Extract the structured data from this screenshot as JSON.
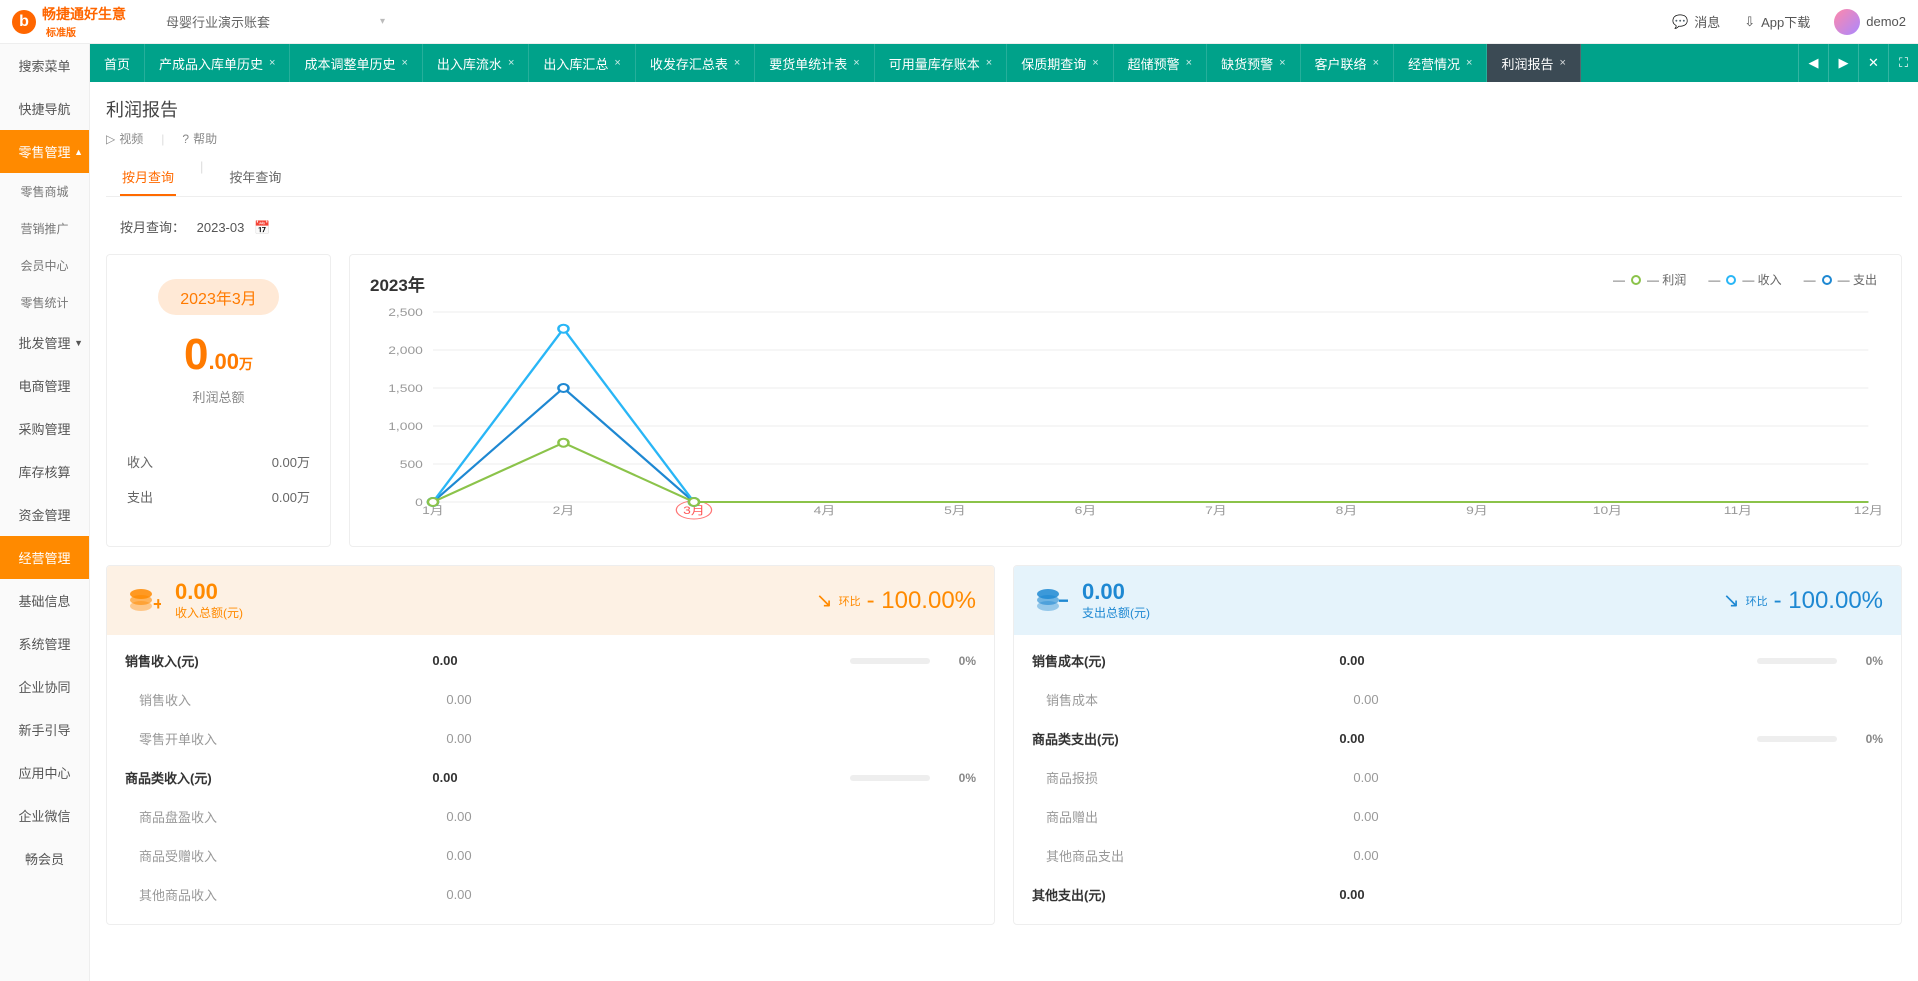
{
  "topbar": {
    "logo_text": "畅捷通好生意",
    "logo_sub": "标准版",
    "account_selector": "母婴行业演示账套",
    "msg": "消息",
    "app_dl": "App下载",
    "user": "demo2"
  },
  "sidebar": {
    "search": "搜索菜单",
    "quicknav": "快捷导航",
    "groups": [
      {
        "label": "零售管理",
        "active": true,
        "arrow": "▲",
        "subs": [
          "零售商城",
          "营销推广",
          "会员中心",
          "零售统计"
        ]
      },
      {
        "label": "批发管理",
        "arrow": "▼"
      },
      {
        "label": "电商管理"
      },
      {
        "label": "采购管理"
      },
      {
        "label": "库存核算"
      },
      {
        "label": "资金管理"
      },
      {
        "label": "经营管理",
        "highlight": true
      },
      {
        "label": "基础信息"
      },
      {
        "label": "系统管理"
      },
      {
        "label": "企业协同"
      },
      {
        "label": "新手引导"
      },
      {
        "label": "应用中心"
      },
      {
        "label": "企业微信"
      },
      {
        "label": "畅会员"
      }
    ]
  },
  "tabs": [
    {
      "label": "首页",
      "closable": false
    },
    {
      "label": "产成品入库单历史",
      "closable": true
    },
    {
      "label": "成本调整单历史",
      "closable": true
    },
    {
      "label": "出入库流水",
      "closable": true
    },
    {
      "label": "出入库汇总",
      "closable": true
    },
    {
      "label": "收发存汇总表",
      "closable": true
    },
    {
      "label": "要货单统计表",
      "closable": true
    },
    {
      "label": "可用量库存账本",
      "closable": true
    },
    {
      "label": "保质期查询",
      "closable": true
    },
    {
      "label": "超储预警",
      "closable": true
    },
    {
      "label": "缺货预警",
      "closable": true
    },
    {
      "label": "客户联络",
      "closable": true
    },
    {
      "label": "经营情况",
      "closable": true
    },
    {
      "label": "利润报告",
      "closable": true,
      "current": true
    }
  ],
  "page": {
    "title": "利润报告",
    "help_video": "视频",
    "help_doc": "帮助",
    "query_tabs": {
      "by_month": "按月查询",
      "by_year": "按年查询",
      "active": "by_month"
    },
    "query_label": "按月查询：",
    "query_date": "2023-03"
  },
  "summary": {
    "period": "2023年3月",
    "big_int": "0",
    "big_dec": ".00",
    "big_unit": "万",
    "big_label": "利润总额",
    "rows": [
      {
        "k": "收入",
        "v": "0.00万"
      },
      {
        "k": "支出",
        "v": "0.00万"
      }
    ]
  },
  "chart": {
    "title": "2023年",
    "legend": [
      {
        "name": "利润",
        "color": "#8bc34a"
      },
      {
        "name": "收入",
        "color": "#29b6f6"
      },
      {
        "name": "支出",
        "color": "#1e88d2"
      }
    ],
    "y_ticks": [
      "2,500",
      "2,000",
      "1,500",
      "1,000",
      "500",
      "0"
    ],
    "y_max": 2500,
    "x_labels": [
      "1月",
      "2月",
      "3月",
      "4月",
      "5月",
      "6月",
      "7月",
      "8月",
      "9月",
      "10月",
      "11月",
      "12月"
    ],
    "highlight_x": 2,
    "series": {
      "profit": [
        0,
        780,
        0,
        0,
        0,
        0,
        0,
        0,
        0,
        0,
        0,
        0
      ],
      "income": [
        0,
        2280,
        0,
        0,
        0,
        0,
        0,
        0,
        0,
        0,
        0,
        0
      ],
      "expense": [
        0,
        1500,
        0,
        0,
        0,
        0,
        0,
        0,
        0,
        0,
        0,
        0
      ]
    },
    "colors": {
      "profit": "#8bc34a",
      "income": "#29b6f6",
      "expense": "#1e88d2"
    },
    "grid_color": "#eeeeee",
    "bg": "#ffffff"
  },
  "income_panel": {
    "total_value": "0.00",
    "total_label": "收入总额(元)",
    "delta_label": "环比",
    "delta_value": "- 100.00%",
    "rows": [
      {
        "type": "section",
        "name": "销售收入(元)",
        "amt": "0.00",
        "pct": "0%"
      },
      {
        "type": "sub",
        "name": "销售收入",
        "amt": "0.00"
      },
      {
        "type": "sub",
        "name": "零售开单收入",
        "amt": "0.00"
      },
      {
        "type": "section",
        "name": "商品类收入(元)",
        "amt": "0.00",
        "pct": "0%"
      },
      {
        "type": "sub",
        "name": "商品盘盈收入",
        "amt": "0.00"
      },
      {
        "type": "sub",
        "name": "商品受赠收入",
        "amt": "0.00"
      },
      {
        "type": "sub",
        "name": "其他商品收入",
        "amt": "0.00"
      }
    ]
  },
  "expense_panel": {
    "total_value": "0.00",
    "total_label": "支出总额(元)",
    "delta_label": "环比",
    "delta_value": "- 100.00%",
    "rows": [
      {
        "type": "section",
        "name": "销售成本(元)",
        "amt": "0.00",
        "pct": "0%"
      },
      {
        "type": "sub",
        "name": "销售成本",
        "amt": "0.00"
      },
      {
        "type": "section",
        "name": "商品类支出(元)",
        "amt": "0.00",
        "pct": "0%"
      },
      {
        "type": "sub",
        "name": "商品报损",
        "amt": "0.00"
      },
      {
        "type": "sub",
        "name": "商品赠出",
        "amt": "0.00"
      },
      {
        "type": "sub",
        "name": "其他商品支出",
        "amt": "0.00"
      },
      {
        "type": "section",
        "name": "其他支出(元)",
        "amt": "0.00"
      }
    ]
  }
}
